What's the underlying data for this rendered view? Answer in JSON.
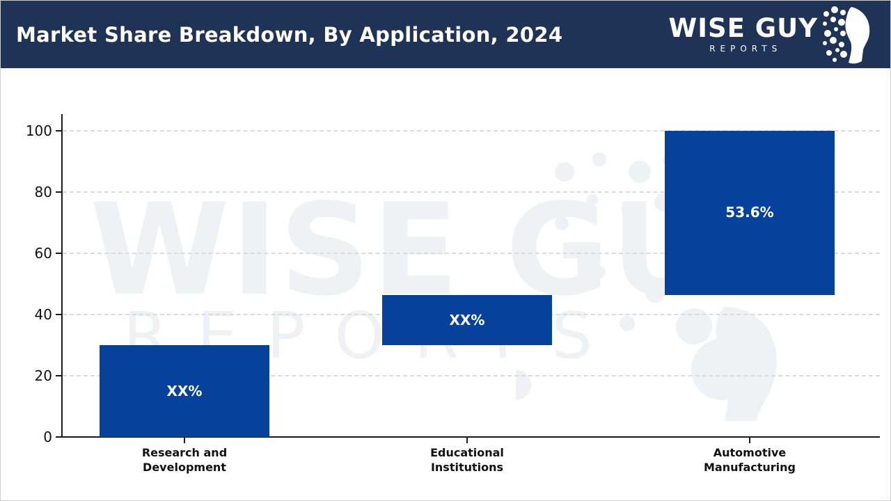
{
  "header": {
    "title": "Market Share Breakdown, By Application, 2024",
    "bg_color": "#1f3357",
    "logo": {
      "wordmark": "WISE GUY",
      "sub": "REPORTS"
    }
  },
  "watermark": {
    "line1": "WISE GUY",
    "line2": "REPORTS"
  },
  "chart_data": {
    "type": "bar",
    "subtype": "floating-segment-waterfall",
    "title": "Market Share Breakdown, By Application, 2024",
    "categories": [
      [
        "Research and",
        "Development"
      ],
      [
        "Educational",
        "Institutions"
      ],
      [
        "Automotive",
        "Manufacturing"
      ]
    ],
    "series": [
      {
        "name": "Market share (%)",
        "starts": [
          0,
          30,
          46.4
        ],
        "ends": [
          30,
          46.4,
          100
        ],
        "values": [
          30,
          16.4,
          53.6
        ],
        "labels": [
          "XX%",
          "XX%",
          "53.6%"
        ]
      }
    ],
    "yticks": [
      0,
      20,
      40,
      60,
      80,
      100
    ],
    "ylim": [
      0,
      100
    ],
    "grid": "horizontal-dashed",
    "legend": "none",
    "bar_color": "#06419c",
    "bar_label_color": "#ffffff",
    "axis_color": "#1a1a1a",
    "grid_color": "#dcdcdc"
  }
}
